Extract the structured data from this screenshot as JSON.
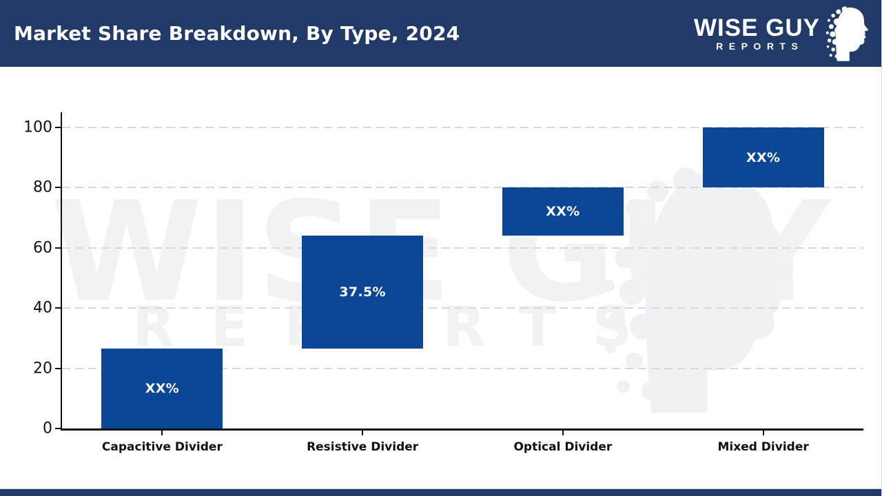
{
  "header": {
    "title": "Market Share Breakdown, By Type, 2024",
    "bg_color": "#223a68",
    "logo": {
      "line1": "WISE GUY",
      "line2": "REPORTS"
    }
  },
  "watermark": {
    "line1": "WISE GUY",
    "line2": "REPORTS",
    "color": "#f1f2f4"
  },
  "footer": {
    "bg_color": "#223a68"
  },
  "chart_data": {
    "type": "bar",
    "subtype": "floating-waterfall",
    "title": "Market Share Breakdown, By Type, 2024",
    "categories": [
      "Capacitive Divider",
      "Resistive Divider",
      "Optical Divider",
      "Mixed Divider"
    ],
    "bars": [
      {
        "category": "Capacitive Divider",
        "base": 0,
        "top": 26.5,
        "height": 26.5,
        "label": "XX%"
      },
      {
        "category": "Resistive Divider",
        "base": 26.5,
        "top": 64,
        "height": 37.5,
        "label": "37.5%"
      },
      {
        "category": "Optical Divider",
        "base": 64,
        "top": 80,
        "height": 16,
        "label": "XX%"
      },
      {
        "category": "Mixed Divider",
        "base": 80,
        "top": 100,
        "height": 20,
        "label": "XX%"
      }
    ],
    "xlabel": "",
    "ylabel": "",
    "ylim": [
      0,
      105
    ],
    "yticks": [
      0,
      20,
      40,
      60,
      80,
      100
    ],
    "bar_color": "#0b4697",
    "bar_label_color": "#ffffff",
    "grid": "horizontal-dashed",
    "gridline_color": "#d8d8d8",
    "legend": "none"
  }
}
